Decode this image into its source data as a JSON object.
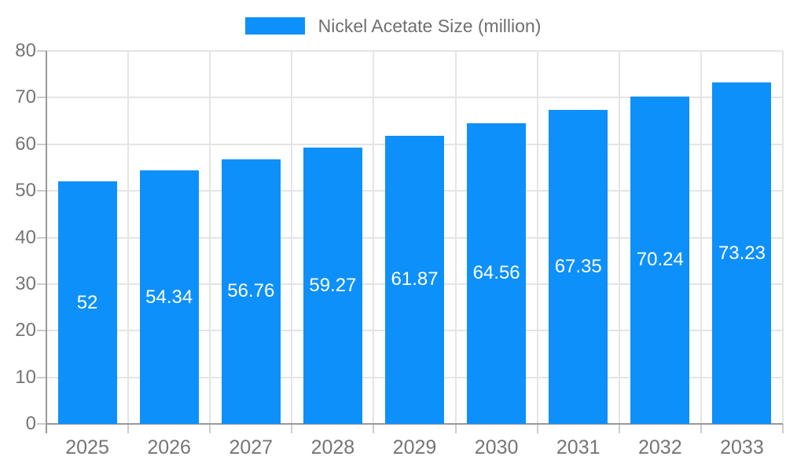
{
  "chart_data": {
    "type": "bar",
    "title": "Nickel Acetate Size (million)",
    "categories": [
      "2025",
      "2026",
      "2027",
      "2028",
      "2029",
      "2030",
      "2031",
      "2032",
      "2033"
    ],
    "series": [
      {
        "name": "Nickel Acetate Size (million)",
        "values": [
          52,
          54.34,
          56.76,
          59.27,
          61.87,
          64.56,
          67.35,
          70.24,
          73.23
        ],
        "color": "#0e90fa"
      }
    ],
    "value_labels": [
      "52",
      "54.34",
      "56.76",
      "59.27",
      "61.87",
      "64.56",
      "67.35",
      "70.24",
      "73.23"
    ],
    "value_labels_visible": true,
    "value_label_position": "inside-center",
    "xlabel": "",
    "ylabel": "",
    "ylim": [
      0,
      80
    ],
    "ytick_step": 10,
    "ytick_labels": [
      "0",
      "10",
      "20",
      "30",
      "40",
      "50",
      "60",
      "70",
      "80"
    ],
    "grid": true,
    "legend_position": "top-center"
  },
  "legend": {
    "label": "Nickel Acetate Size (million)"
  },
  "colors": {
    "bar": "#0e90fa",
    "grid_line": "#e4e4e4",
    "axis_line": "#999999",
    "tick": "#cccccc",
    "axis_text": "#757575",
    "legend_text": "#6f6f6f",
    "value_text": "#ffffff",
    "background": "#ffffff"
  }
}
